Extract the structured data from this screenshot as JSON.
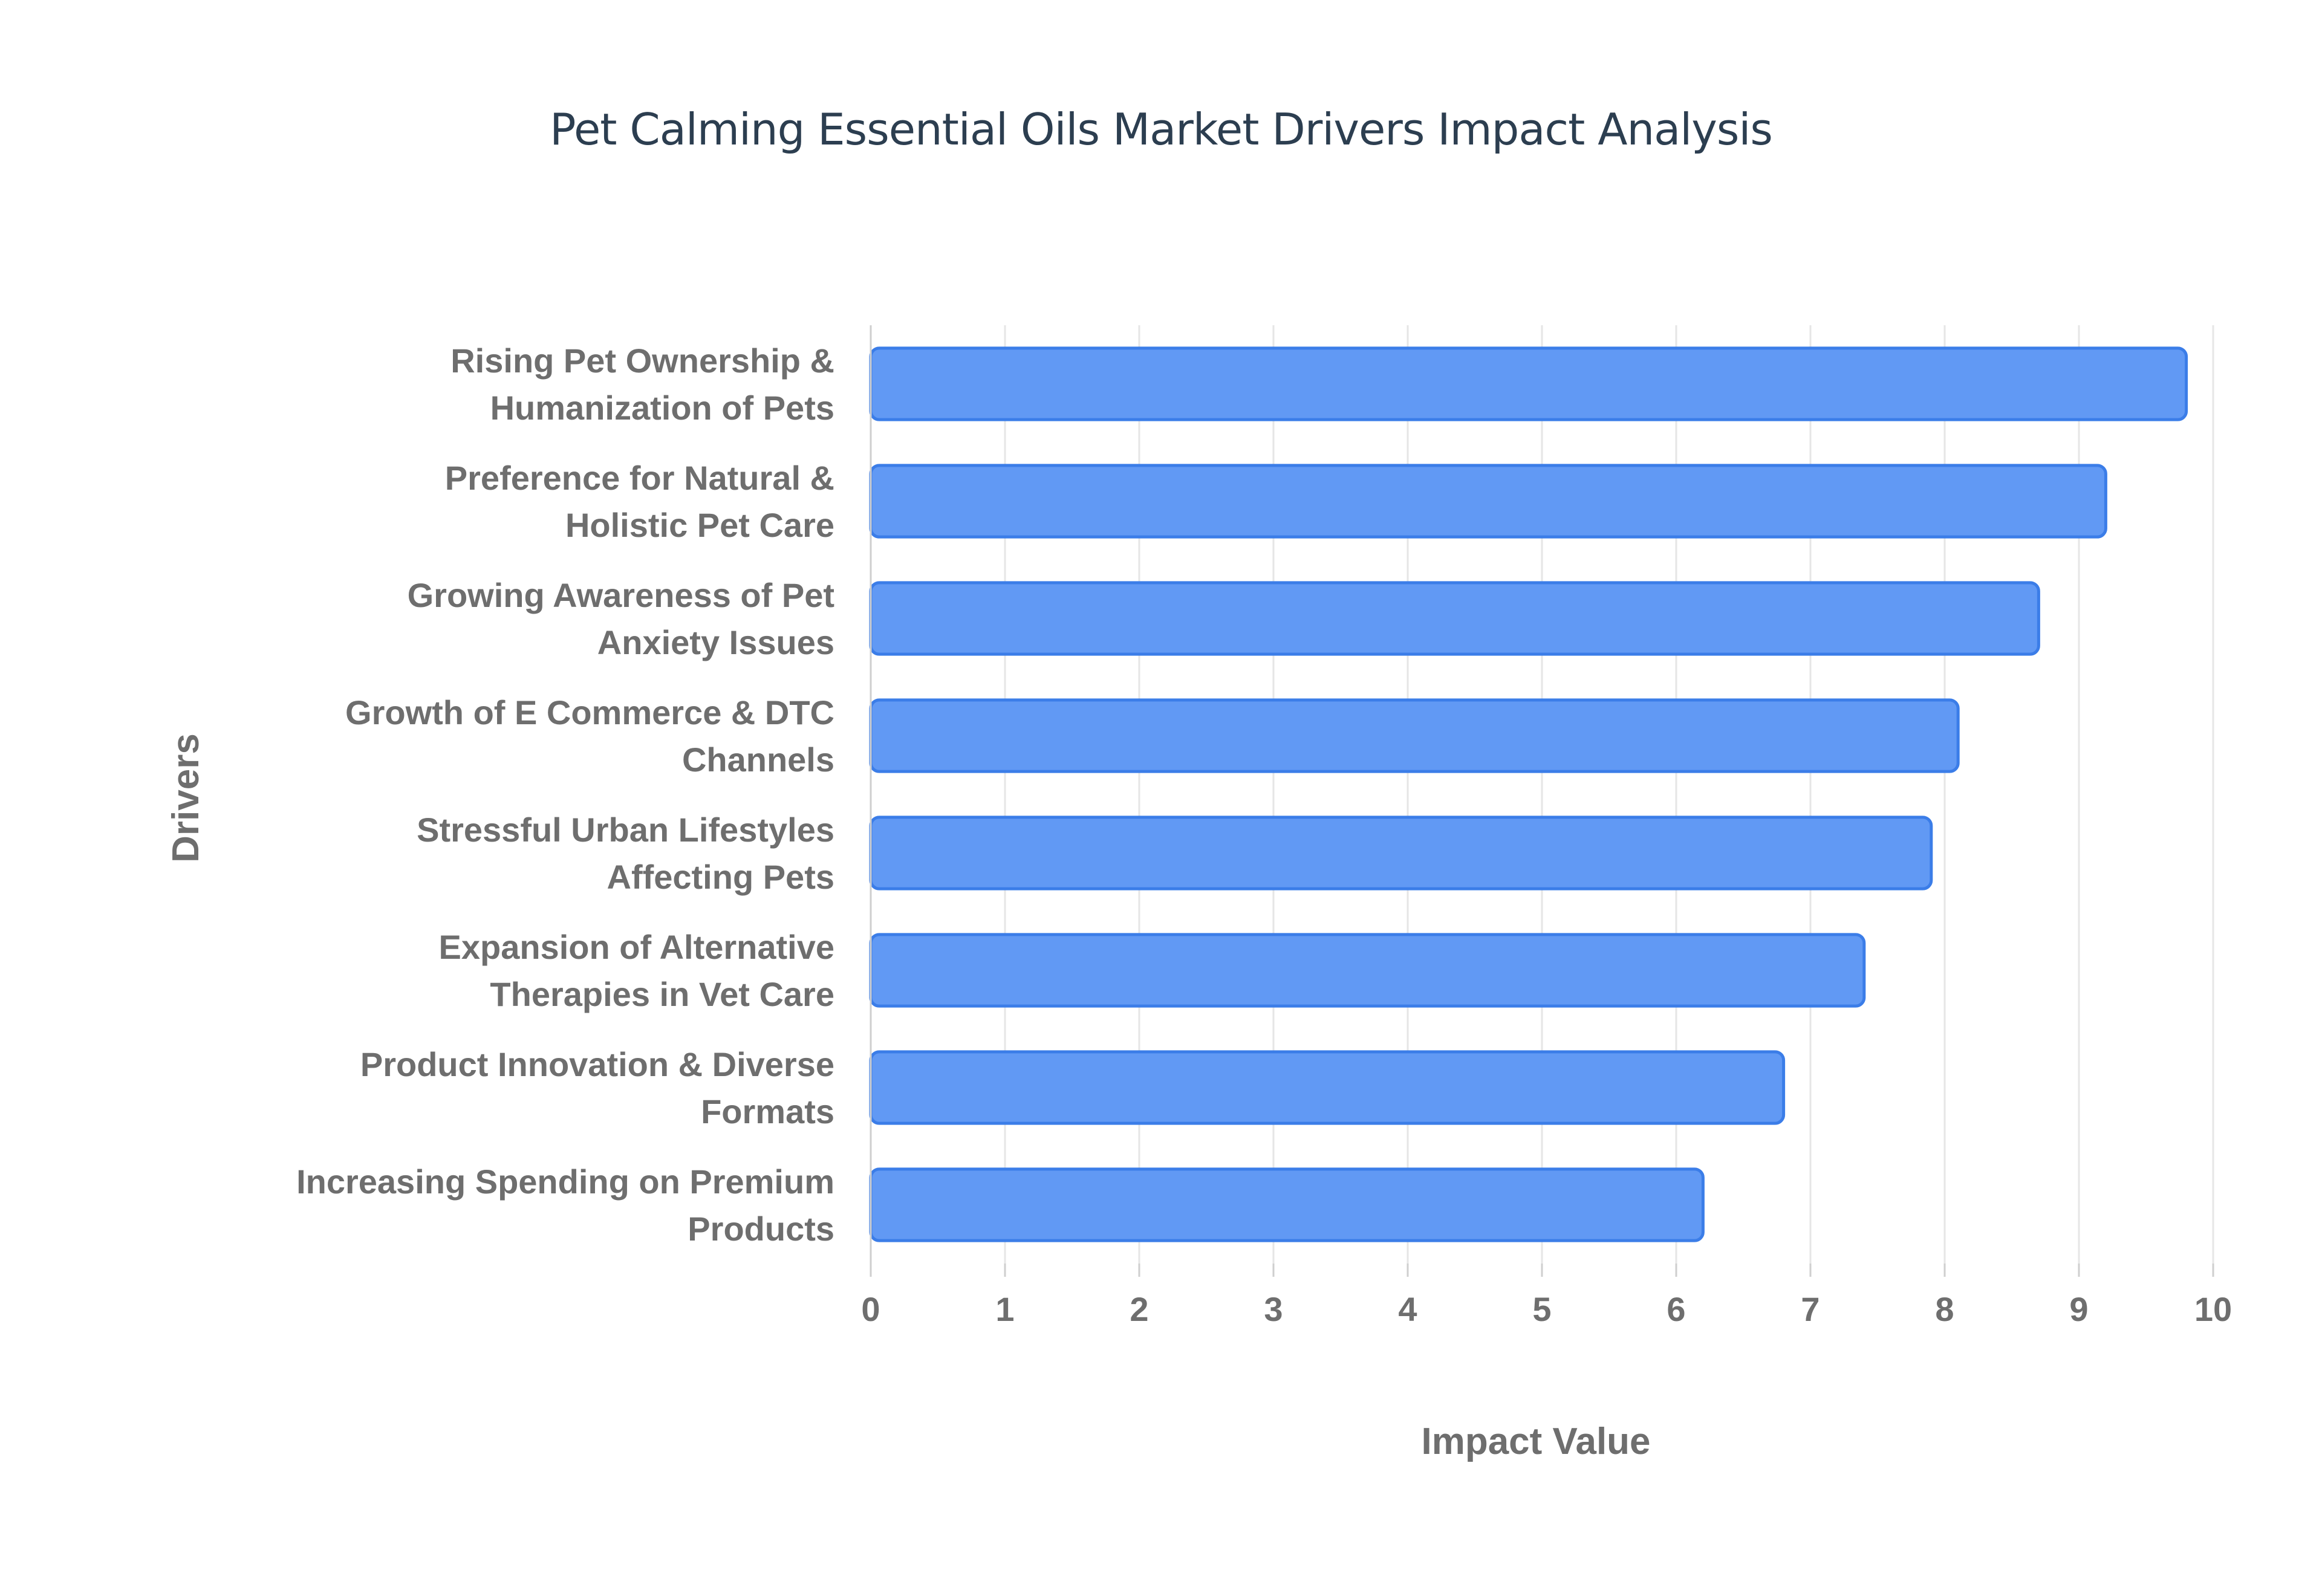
{
  "chart_data": {
    "type": "bar",
    "orientation": "horizontal",
    "title": "Pet Calming Essential Oils Market Drivers Impact Analysis",
    "xlabel": "Impact Value",
    "ylabel": "Drivers",
    "xlim": [
      0,
      10
    ],
    "x_ticks": [
      "0",
      "1",
      "2",
      "3",
      "4",
      "5",
      "6",
      "7",
      "8",
      "9",
      "10"
    ],
    "grid": true,
    "bar_color": "#6199f4",
    "bar_border_color": "#3b7de8",
    "categories": [
      [
        "Rising Pet Ownership &",
        "Humanization of Pets"
      ],
      [
        "Preference for Natural &",
        "Holistic Pet Care"
      ],
      [
        "Growing Awareness of Pet",
        "Anxiety Issues"
      ],
      [
        "Growth of E Commerce & DTC",
        "Channels"
      ],
      [
        "Stressful Urban Lifestyles",
        "Affecting Pets"
      ],
      [
        "Expansion of Alternative",
        "Therapies in Vet Care"
      ],
      [
        "Product Innovation & Diverse",
        "Formats"
      ],
      [
        "Increasing Spending on Premium",
        "Products"
      ]
    ],
    "values": [
      9.8,
      9.2,
      8.7,
      8.1,
      7.9,
      7.4,
      6.8,
      6.2
    ]
  }
}
